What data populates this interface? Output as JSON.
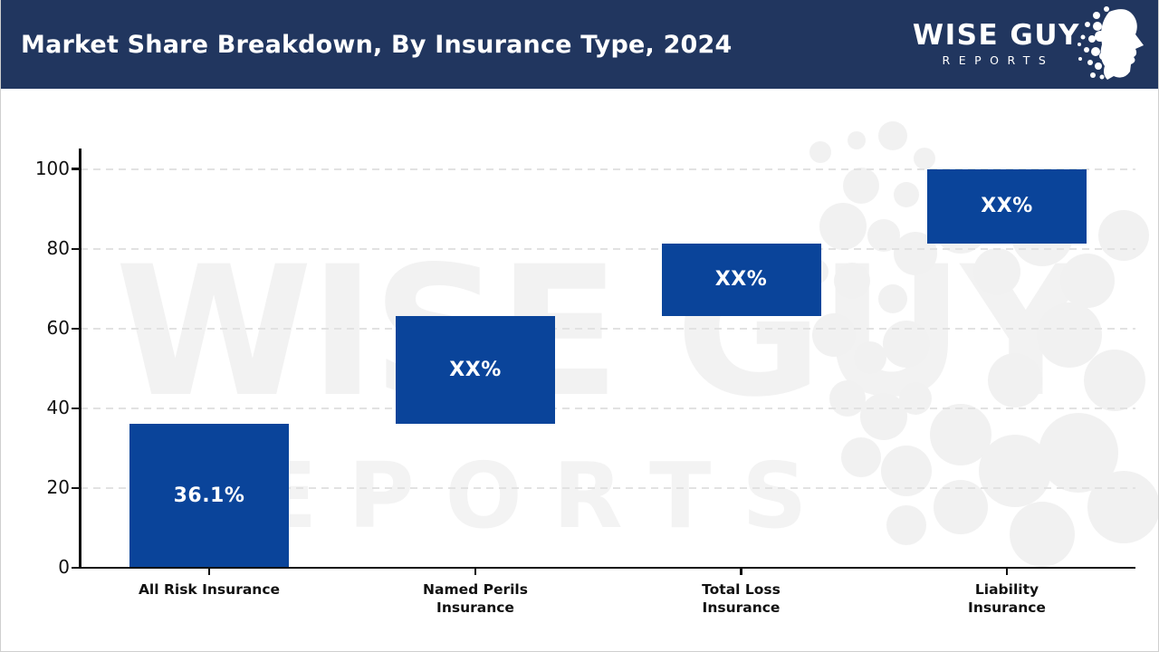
{
  "header": {
    "title": "Market Share Breakdown, By Insurance Type, 2024",
    "logo": {
      "name": "WISE GUY",
      "sub": "REPORTS"
    }
  },
  "watermark": {
    "big": "WISE GUY",
    "sub": "REPORTS"
  },
  "colors": {
    "header_bg": "#21365F",
    "bar": "#0A449A",
    "axis": "#111111",
    "grid": "#E2E2E2",
    "bar_label": "#FFFFFF",
    "watermark": "#F2F2F2"
  },
  "chart_data": {
    "type": "bar",
    "variant": "floating-segment-waterfall",
    "title": "Market Share Breakdown, By Insurance Type, 2024",
    "xlabel": "",
    "ylabel": "",
    "ylim": [
      0,
      100
    ],
    "yticks": [
      0,
      20,
      40,
      60,
      80,
      100
    ],
    "grid": "horizontal-dashed",
    "legend": "none",
    "categories": [
      "All Risk Insurance",
      "Named Perils\nInsurance",
      "Total Loss\nInsurance",
      "Liability\nInsurance"
    ],
    "bars": [
      {
        "category": "All Risk Insurance",
        "start": 0,
        "end": 36.1,
        "label": "36.1%"
      },
      {
        "category": "Named Perils Insurance",
        "start": 36.1,
        "end": 63.2,
        "label": "XX%"
      },
      {
        "category": "Total Loss Insurance",
        "start": 63.2,
        "end": 81.4,
        "label": "XX%"
      },
      {
        "category": "Liability Insurance",
        "start": 81.4,
        "end": 100,
        "label": "XX%"
      }
    ]
  }
}
